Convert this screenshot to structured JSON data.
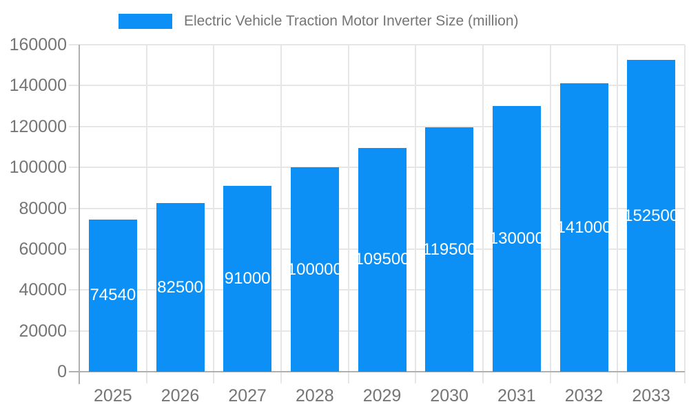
{
  "chart_data": {
    "type": "bar",
    "title": "Electric Vehicle Traction Motor Inverter Size (million)",
    "series": [
      {
        "name": "Electric Vehicle Traction Motor Inverter Size (million)",
        "values": [
          74540,
          82500,
          91000,
          100000,
          109500,
          119500,
          130000,
          141000,
          152500
        ]
      }
    ],
    "categories": [
      "2025",
      "2026",
      "2027",
      "2028",
      "2029",
      "2030",
      "2031",
      "2032",
      "2033"
    ],
    "bar_labels": [
      "74540",
      "82500",
      "91000",
      "100000",
      "109500",
      "119500",
      "130000",
      "141000",
      "152500"
    ],
    "xlabel": "",
    "ylabel": "",
    "ylim": [
      0,
      160000
    ],
    "ytick_step": 20000,
    "ytick_labels": [
      "0",
      "20000",
      "40000",
      "60000",
      "80000",
      "100000",
      "120000",
      "140000",
      "160000"
    ],
    "grid": true,
    "legend_position": "top",
    "colors": {
      "bar": "#0d90f5",
      "bar_label_text": "#ffffff",
      "axis_text": "#757575",
      "gridline": "#e6e6e6",
      "axis_line": "#b0b0b0",
      "background": "#ffffff"
    }
  }
}
